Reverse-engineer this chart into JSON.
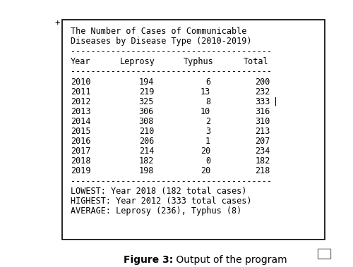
{
  "title_line1": "The Number of Cases of Communicable",
  "title_line2": "Diseases by Disease Type (2010-2019)",
  "headers": [
    "Year",
    "Leprosy",
    "Typhus",
    "Total"
  ],
  "rows": [
    [
      2010,
      194,
      6,
      200
    ],
    [
      2011,
      219,
      13,
      232
    ],
    [
      2012,
      325,
      8,
      333
    ],
    [
      2013,
      306,
      10,
      316
    ],
    [
      2014,
      308,
      2,
      310
    ],
    [
      2015,
      210,
      3,
      213
    ],
    [
      2016,
      206,
      1,
      207
    ],
    [
      2017,
      214,
      20,
      234
    ],
    [
      2018,
      182,
      0,
      182
    ],
    [
      2019,
      198,
      20,
      218
    ]
  ],
  "summary_line1": "LOWEST: Year 2018 (182 total cases)",
  "summary_line2": "HIGHEST: Year 2012 (333 total cases)",
  "summary_line3": "AVERAGE: Leprosy (236), Typhus (8)",
  "caption_bold": "Figure 3:",
  "caption_normal": " Output of the program",
  "highlight_row": 2,
  "bg_color": "#ffffff",
  "box_color": "#000000",
  "font_family": "monospace",
  "font_size": 8.5,
  "caption_fontsize": 10
}
